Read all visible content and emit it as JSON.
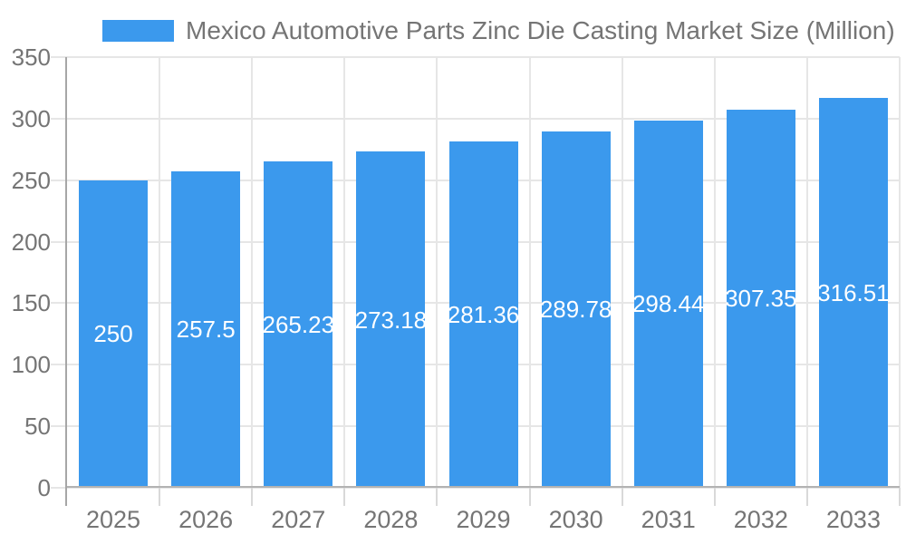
{
  "chart_data": {
    "type": "bar",
    "title": "Mexico Automotive Parts Zinc Die Casting Market Size (Million)",
    "legend_position": "top",
    "categories": [
      "2025",
      "2026",
      "2027",
      "2028",
      "2029",
      "2030",
      "2031",
      "2032",
      "2033"
    ],
    "values": [
      250,
      257.5,
      265.23,
      273.18,
      281.36,
      289.78,
      298.44,
      307.35,
      316.51
    ],
    "value_labels": [
      "250",
      "257.5",
      "265.23",
      "273.18",
      "281.36",
      "289.78",
      "298.44",
      "307.35",
      "316.51"
    ],
    "xlabel": "",
    "ylabel": "",
    "ylim": [
      0,
      350
    ],
    "yticks": [
      0,
      50,
      100,
      150,
      200,
      250,
      300,
      350
    ],
    "grid": true,
    "colors": {
      "bar": "#3B99ED",
      "gridline": "#E6E6E6",
      "axis": "#A6A6A6",
      "baseline": "#B3B3B3",
      "tick_below_axis": "#D9D9D9",
      "text": "#757575",
      "bar_label": "#FFFFFF",
      "background": "#FFFFFF"
    }
  }
}
